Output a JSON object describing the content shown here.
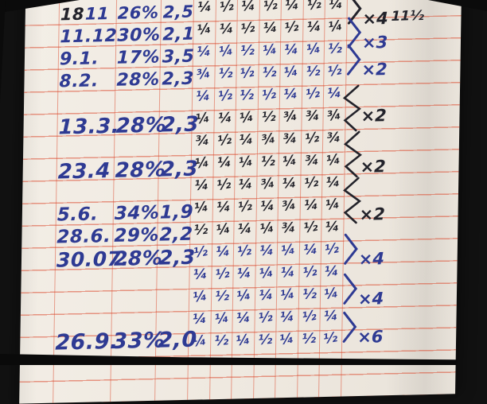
{
  "colors": {
    "ink_blue": "#2e3a93",
    "ink_black": "#22222a",
    "line_red": "#db492d",
    "paper": "#efe9e0"
  },
  "corner_note": {
    "text": "11½"
  },
  "table": {
    "rows": [
      {
        "line": 0,
        "date_black": "18",
        "date": "11",
        "pct": "26%",
        "val": "2,5"
      },
      {
        "line": 1,
        "date": "11.12",
        "pct": "30%",
        "val": "2,1"
      },
      {
        "line": 2,
        "date": "9.1.",
        "pct": "17%",
        "val": "3,5"
      },
      {
        "line": 3,
        "date": "8.2.",
        "pct": "28%",
        "val": "2,3"
      },
      {
        "line": 5,
        "date": "13.3.",
        "pct": "28%",
        "val": "2,3"
      },
      {
        "line": 7,
        "date": "23.4",
        "pct": "28%",
        "val": "2,3"
      },
      {
        "line": 9,
        "date": "5.6.",
        "pct": "34%",
        "val": "1,9"
      },
      {
        "line": 10,
        "date": "28.6.",
        "pct": "29%",
        "val": "2,2"
      },
      {
        "line": 11,
        "date": "30.07.",
        "pct": "28%",
        "val": "2,3"
      },
      {
        "line": 15,
        "date": "26.9.",
        "pct": "33%",
        "val": "2,0"
      }
    ]
  },
  "fractions": {
    "rows": [
      {
        "line": 0,
        "ink": "black",
        "cells": [
          "¼",
          "½",
          "¼",
          "½",
          "¼",
          "½",
          "¼"
        ]
      },
      {
        "line": 1,
        "ink": "black",
        "cells": [
          "¼",
          "¼",
          "½",
          "¼",
          "½",
          "¼",
          "¼"
        ]
      },
      {
        "line": 2,
        "ink": "blue",
        "cells": [
          "¼",
          "¼",
          "½",
          "¼",
          "¼",
          "¼",
          "½"
        ]
      },
      {
        "line": 3,
        "ink": "blue",
        "cells": [
          "¾",
          "½",
          "½",
          "½",
          "¼",
          "½",
          "½"
        ]
      },
      {
        "line": 4,
        "ink": "blue",
        "cells": [
          "¼",
          "½",
          "½",
          "½",
          "¼",
          "½",
          "¼"
        ]
      },
      {
        "line": 5,
        "ink": "black",
        "cells": [
          "¼",
          "¼",
          "¼",
          "½",
          "¾",
          "¾",
          "¾"
        ]
      },
      {
        "line": 6,
        "ink": "black",
        "cells": [
          "¾",
          "½",
          "¼",
          "¾",
          "¾",
          "½",
          "¾"
        ]
      },
      {
        "line": 7,
        "ink": "black",
        "cells": [
          "¼",
          "¼",
          "¼",
          "½",
          "¼",
          "¾",
          "¼"
        ]
      },
      {
        "line": 8,
        "ink": "black",
        "cells": [
          "¼",
          "½",
          "¼",
          "¾",
          "¼",
          "½",
          "¼"
        ]
      },
      {
        "line": 9,
        "ink": "black",
        "cells": [
          "¼",
          "¼",
          "½",
          "¼",
          "¾",
          "¼",
          "¼"
        ]
      },
      {
        "line": 10,
        "ink": "black",
        "cells": [
          "½",
          "¼",
          "¼",
          "¼",
          "¾",
          "½",
          "¼"
        ]
      },
      {
        "line": 11,
        "ink": "blue",
        "cells": [
          "½",
          "¼",
          "½",
          "¼",
          "¼",
          "¼",
          "½"
        ]
      },
      {
        "line": 12,
        "ink": "blue",
        "cells": [
          "¼",
          "½",
          "¼",
          "¼",
          "¼",
          "½",
          "¼"
        ]
      },
      {
        "line": 13,
        "ink": "blue",
        "cells": [
          "¼",
          "½",
          "¼",
          "¼",
          "¼",
          "½",
          "¼"
        ]
      },
      {
        "line": 14,
        "ink": "blue",
        "cells": [
          "¼",
          "¼",
          "¼",
          "½",
          "¼",
          "½",
          "¼"
        ]
      },
      {
        "line": 15,
        "ink": "blue",
        "cells": [
          "¼",
          "½",
          "¼",
          "½",
          "¼",
          "½",
          "½"
        ]
      }
    ]
  },
  "annotations": [
    {
      "label": "×4",
      "ink": "black",
      "brace": "angle"
    },
    {
      "label": "×3",
      "ink": "blue",
      "brace": "angle"
    },
    {
      "label": "×2",
      "ink": "blue",
      "brace": "angle"
    },
    {
      "label": "×2",
      "ink": "black",
      "brace": "zigzag"
    },
    {
      "label": "×2",
      "ink": "black",
      "brace": "zigzag"
    },
    {
      "label": "×2",
      "ink": "black",
      "brace": "zigzag"
    },
    {
      "label": "×4",
      "ink": "blue",
      "brace": "angle"
    },
    {
      "label": "×4",
      "ink": "blue",
      "brace": "angle"
    },
    {
      "label": "×6",
      "ink": "blue",
      "brace": "angle"
    }
  ]
}
